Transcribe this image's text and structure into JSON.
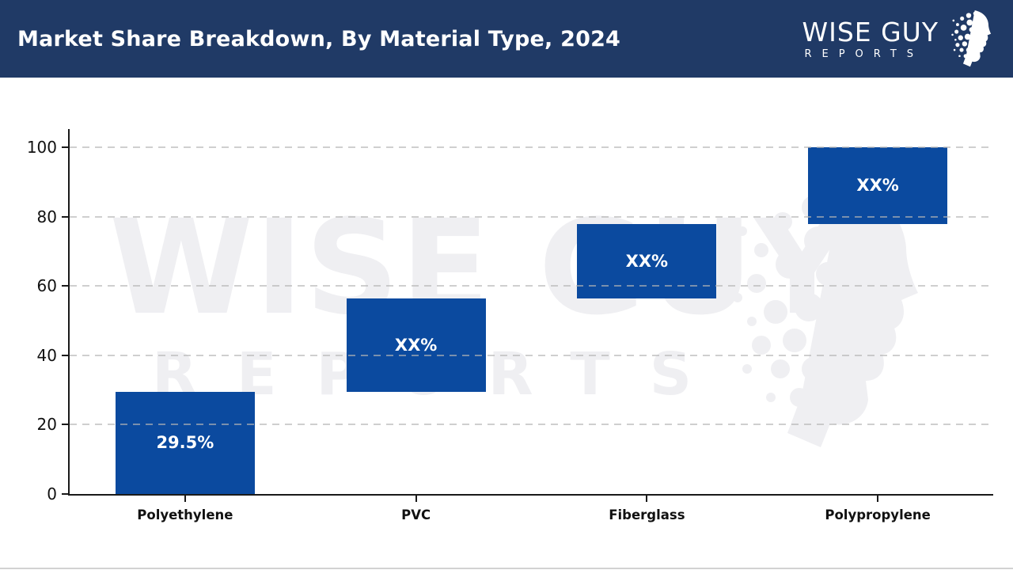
{
  "header": {
    "title": "Market Share Breakdown, By Material Type, 2024",
    "logo": {
      "wordmark": "WISE GUY",
      "subtext": "REPORTS"
    }
  },
  "watermark": {
    "wordmark": "WISE GUY",
    "subtext": "REPORTS"
  },
  "colors": {
    "header_bg": "#203a66",
    "bar": "#0b4a9f",
    "axis": "#1a1a1a",
    "grid": "#b5b5b5",
    "watermark": "#efeff2",
    "bar_label": "#ffffff",
    "title_text": "#ffffff",
    "tick_label": "#111111",
    "footer_line": "#d2d2d2"
  },
  "chart_data": {
    "type": "bar",
    "variant": "floating-waterfall",
    "title": "Market Share Breakdown, By Material Type, 2024",
    "categories": [
      "Polyethylene",
      "PVC",
      "Fiberglass",
      "Polypropylene"
    ],
    "segments": [
      [
        0,
        29.5
      ],
      [
        29.5,
        56.4
      ],
      [
        56.4,
        77.9
      ],
      [
        77.9,
        100
      ]
    ],
    "bar_labels": [
      "29.5%",
      "XX%",
      "XX%",
      "XX%"
    ],
    "xlabel": "",
    "ylabel": "",
    "ylim": [
      0,
      105
    ],
    "yticks": [
      0,
      20,
      40,
      60,
      80,
      100
    ],
    "grid": "horizontal-dashed",
    "legend": "none"
  }
}
